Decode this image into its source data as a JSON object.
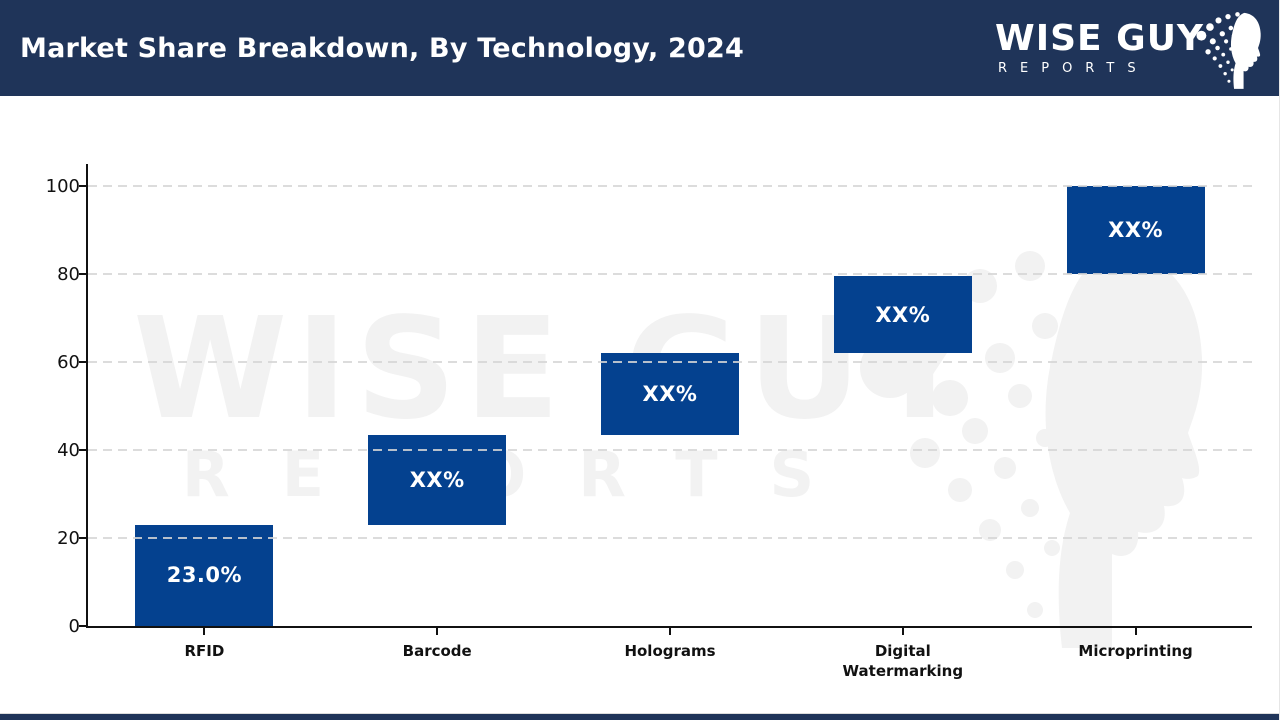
{
  "header": {
    "title": "Market Share Breakdown, By Technology, 2024",
    "logo": {
      "line1": "WISE GUY",
      "line2": "REPORTS"
    }
  },
  "watermark": {
    "line1": "WISE GUY",
    "line2": "REPORTS"
  },
  "chart_data": {
    "type": "bar",
    "subtype": "waterfall",
    "title": "Market Share Breakdown, By Technology, 2024",
    "categories": [
      "RFID",
      "Barcode",
      "Holograms",
      "Digital Watermarking",
      "Microprinting"
    ],
    "segments": [
      {
        "start": 0,
        "end": 23
      },
      {
        "start": 23,
        "end": 43.5
      },
      {
        "start": 43.5,
        "end": 62
      },
      {
        "start": 62,
        "end": 79.5
      },
      {
        "start": 80,
        "end": 100
      }
    ],
    "bar_labels": [
      "23.0%",
      "XX%",
      "XX%",
      "XX%",
      "XX%"
    ],
    "yticks": [
      0,
      20,
      40,
      60,
      80,
      100
    ],
    "ylim": [
      0,
      105
    ],
    "xlabel": "",
    "ylabel": "",
    "grid": "horizontal-dashed",
    "legend_position": "none",
    "bar_color": "#04418f",
    "bar_label_color": "#ffffff"
  },
  "colors": {
    "header_bg": "#1f3459",
    "footer_bg": "#1f3459",
    "bar": "#04418f",
    "grid": "#d6d6d6",
    "watermark": "#f2f2f2",
    "axis": "#111111"
  }
}
